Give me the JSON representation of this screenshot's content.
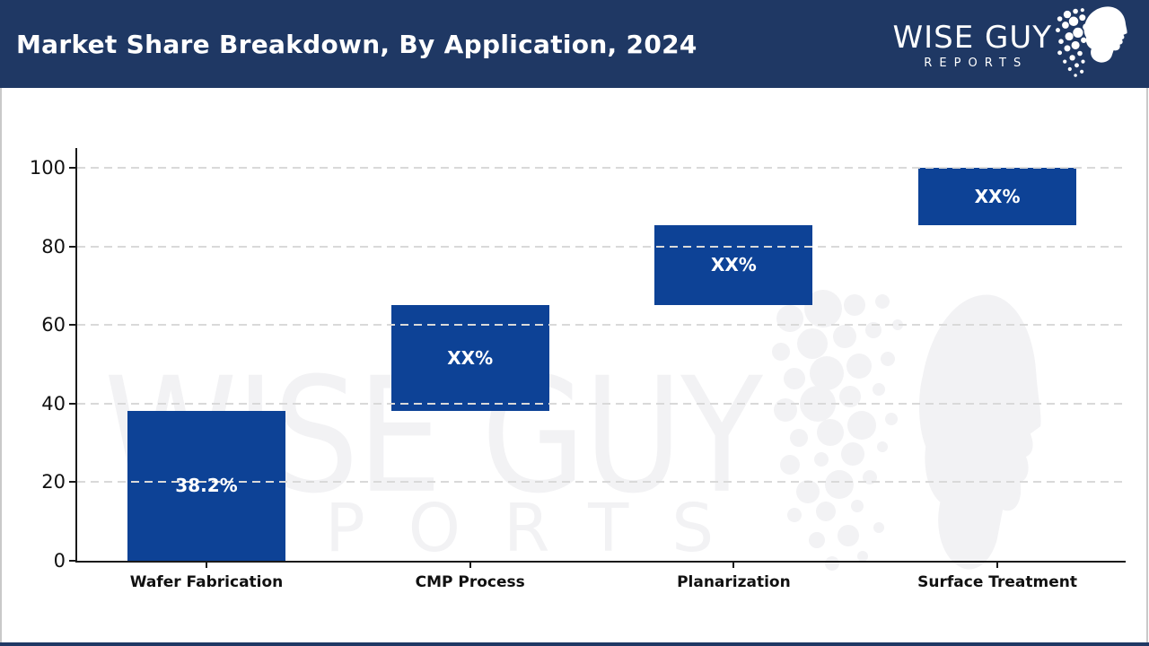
{
  "header": {
    "title": "Market Share Breakdown, By Application, 2024",
    "logo": {
      "wordmark": "WISE GUY",
      "subtext": "REPORTS"
    }
  },
  "watermark": {
    "wordmark": "WISE GUY",
    "subtext": "REPORTS"
  },
  "theme": {
    "navy": "#1f3864",
    "page_bg": "#ffffff",
    "bar_color": "#0d4296",
    "grid_color": "#d9d9d9",
    "axis_color": "#1a1a1a",
    "tick_label_color": "#111111",
    "bar_label_color": "#ffffff",
    "watermark_color": "#f2f2f4",
    "edge_line_color": "#c9c9c9"
  },
  "chart_data": {
    "type": "bar",
    "variant": "floating-waterfall",
    "title": "Market Share Breakdown, By Application, 2024",
    "xlabel": "",
    "ylabel": "",
    "categories": [
      "Wafer Fabrication",
      "CMP Process",
      "Planarization",
      "Surface Treatment"
    ],
    "segments": [
      {
        "category": "Wafer Fabrication",
        "start": 0,
        "end": 38.2,
        "label": "38.2%"
      },
      {
        "category": "CMP Process",
        "start": 38.2,
        "end": 65,
        "label": "XX%"
      },
      {
        "category": "Planarization",
        "start": 65,
        "end": 85.5,
        "label": "XX%"
      },
      {
        "category": "Surface Treatment",
        "start": 85.5,
        "end": 100,
        "label": "XX%"
      }
    ],
    "yticks": [
      0,
      20,
      40,
      60,
      80,
      100
    ],
    "ytick_labels": [
      "0",
      "20",
      "40",
      "60",
      "80",
      "100"
    ],
    "ylim": [
      0,
      105
    ],
    "grid": "horizontal-dashed",
    "grid_above_bars": true,
    "legend": "none"
  }
}
